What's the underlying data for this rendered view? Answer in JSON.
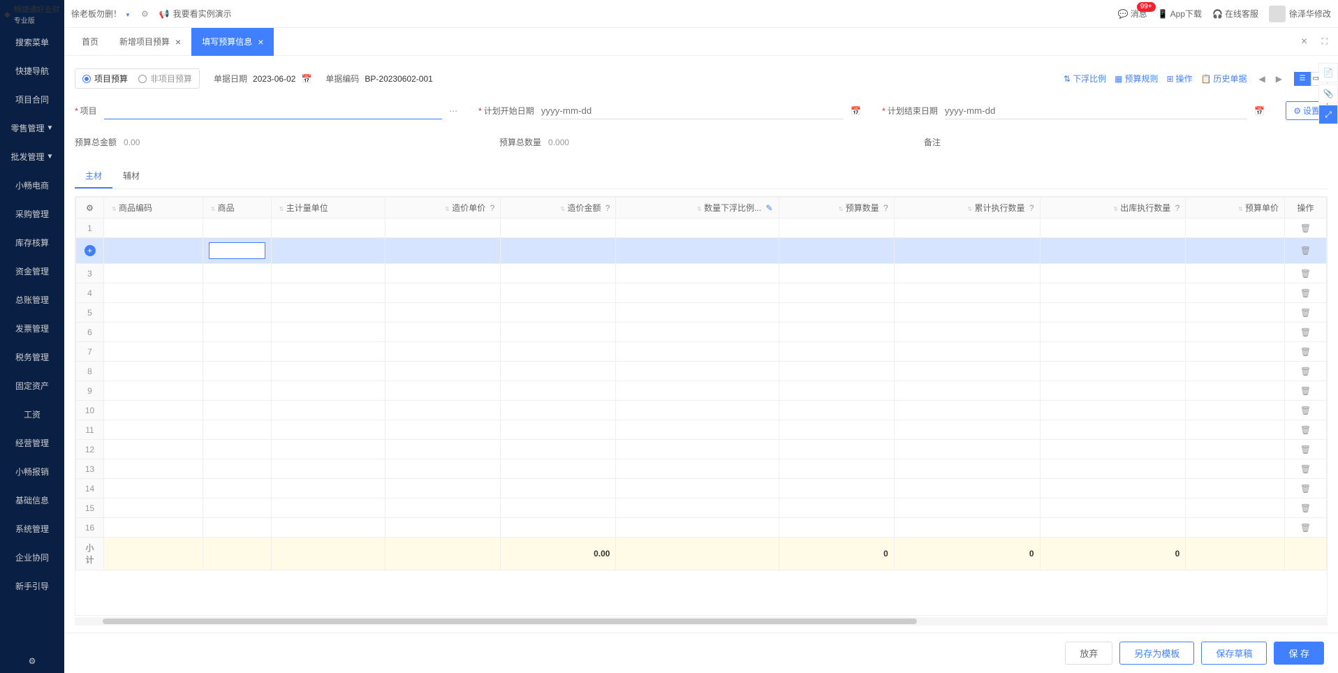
{
  "topbar": {
    "user_dropdown": "徐老板勿删！",
    "demo_link": "我要看实例演示",
    "messages_label": "消息",
    "messages_badge": "99+",
    "app_download": "App下载",
    "online_service": "在线客服",
    "username": "徐泽华修改"
  },
  "sidebar": {
    "brand": "畅捷通好业财",
    "brand_sub": "专业版",
    "items": [
      {
        "label": "搜索菜单",
        "expandable": false
      },
      {
        "label": "快捷导航",
        "expandable": false
      },
      {
        "label": "项目合同",
        "expandable": false
      },
      {
        "label": "零售管理",
        "expandable": true
      },
      {
        "label": "批发管理",
        "expandable": true
      },
      {
        "label": "小畅电商",
        "expandable": false
      },
      {
        "label": "采购管理",
        "expandable": false
      },
      {
        "label": "库存核算",
        "expandable": false
      },
      {
        "label": "资金管理",
        "expandable": false
      },
      {
        "label": "总账管理",
        "expandable": false
      },
      {
        "label": "发票管理",
        "expandable": false
      },
      {
        "label": "税务管理",
        "expandable": false
      },
      {
        "label": "固定资产",
        "expandable": false
      },
      {
        "label": "工资",
        "expandable": false
      },
      {
        "label": "经营管理",
        "expandable": false
      },
      {
        "label": "小畅报销",
        "expandable": false
      },
      {
        "label": "基础信息",
        "expandable": false
      },
      {
        "label": "系统管理",
        "expandable": false
      },
      {
        "label": "企业协同",
        "expandable": false
      },
      {
        "label": "新手引导",
        "expandable": false
      }
    ]
  },
  "tabs": {
    "items": [
      {
        "label": "首页",
        "closable": false,
        "active": false
      },
      {
        "label": "新增项目预算",
        "closable": true,
        "active": false
      },
      {
        "label": "填写预算信息",
        "closable": true,
        "active": true
      }
    ]
  },
  "form": {
    "radio_project": "项目预算",
    "radio_nonproject": "非项目预算",
    "doc_date_label": "单据日期",
    "doc_date_value": "2023-06-02",
    "doc_no_label": "单据编码",
    "doc_no_value": "BP-20230602-001",
    "toolbar": {
      "float_ratio": "下浮比例",
      "budget_rule": "预算规则",
      "operation": "操作",
      "history": "历史单据"
    },
    "project_label": "项目",
    "plan_start_label": "计划开始日期",
    "plan_start_placeholder": "yyyy-mm-dd",
    "plan_end_label": "计划结束日期",
    "plan_end_placeholder": "yyyy-mm-dd",
    "settings_btn": "设置",
    "budget_amount_label": "预算总金额",
    "budget_amount_value": "0.00",
    "budget_qty_label": "预算总数量",
    "budget_qty_value": "0.000",
    "remark_label": "备注"
  },
  "subtabs": {
    "main": "主材",
    "aux": "辅材"
  },
  "table": {
    "columns": {
      "product_code": "商品编码",
      "product": "商品",
      "unit": "主计量单位",
      "cost_price": "造价单价",
      "cost_amount": "造价金额",
      "float_ratio": "数量下浮比例...",
      "budget_qty": "预算数量",
      "exec_qty": "累计执行数量",
      "out_qty": "出库执行数量",
      "budget_price": "预算单价",
      "action": "操作"
    },
    "rows": [
      1,
      2,
      3,
      4,
      5,
      6,
      7,
      8,
      9,
      10,
      11,
      12,
      13,
      14,
      15,
      16
    ],
    "active_row": 2,
    "subtotal_label": "小计",
    "subtotal": {
      "cost_amount": "0.00",
      "budget_qty": "0",
      "exec_qty": "0",
      "out_qty": "0"
    }
  },
  "footer": {
    "discard": "放弃",
    "save_template": "另存为模板",
    "save_draft": "保存草稿",
    "save": "保 存"
  }
}
